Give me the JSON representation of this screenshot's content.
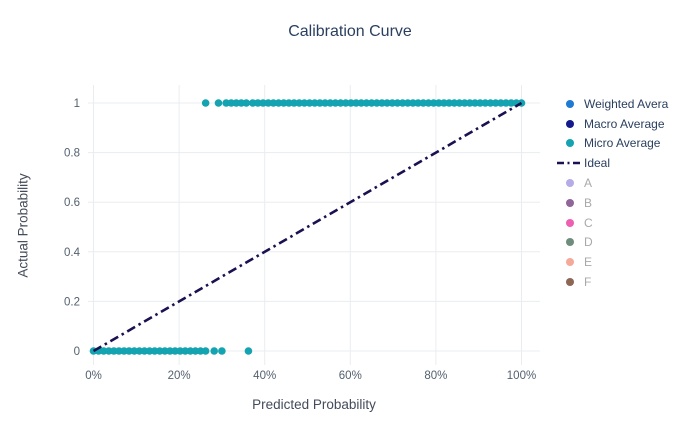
{
  "chart_data": {
    "type": "scatter",
    "title": "Calibration Curve",
    "xlabel": "Predicted Probability",
    "ylabel": "Actual Probability",
    "x_ticks": [
      "0%",
      "20%",
      "40%",
      "60%",
      "80%",
      "100%"
    ],
    "x_tick_values": [
      0,
      20,
      40,
      60,
      80,
      100
    ],
    "y_ticks": [
      "0",
      "0.2",
      "0.4",
      "0.6",
      "0.8",
      "1"
    ],
    "y_tick_values": [
      0,
      0.2,
      0.4,
      0.6,
      0.8,
      1
    ],
    "xlim_pct": [
      -1.3,
      104.3
    ],
    "ylim": [
      -0.07,
      1.07
    ],
    "grid": true,
    "grid_color": "#e9edf0",
    "tick_color": "#53606f",
    "legend_position": "right",
    "series": [
      {
        "name": "Micro Average",
        "type": "scatter-dots",
        "color": "#13a3b1",
        "marker_size": 7.6,
        "dot_step_pct": 1.2,
        "groups": [
          {
            "y": 0,
            "x_segments": [
              [
                0,
                26.2
              ],
              [
                28.2,
                28.2
              ],
              [
                30.0,
                30.0
              ],
              [
                36.2,
                36.2
              ]
            ]
          },
          {
            "y": 1,
            "x_segments": [
              [
                26.2,
                26.2
              ],
              [
                29.2,
                29.2
              ],
              [
                31.0,
                35.7
              ],
              [
                37.2,
                100
              ]
            ]
          }
        ]
      },
      {
        "name": "Ideal",
        "type": "dashdot-line",
        "color": "#1a1150",
        "line_width": 2.6,
        "points": [
          [
            0,
            0
          ],
          [
            100,
            1
          ]
        ]
      }
    ],
    "legend": {
      "items": [
        {
          "label": "Weighted Avera",
          "color": "#1e7ad3",
          "marker": "dot",
          "dimmed": false
        },
        {
          "label": "Macro Average",
          "color": "#141a8c",
          "marker": "dot",
          "dimmed": false
        },
        {
          "label": "Micro Average",
          "color": "#13a3b1",
          "marker": "dot",
          "dimmed": false
        },
        {
          "label": "Ideal",
          "color": "#1a1150",
          "marker": "dashdot-line",
          "dimmed": false
        },
        {
          "label": "A",
          "color": "#b5abe6",
          "marker": "dot",
          "dimmed": true
        },
        {
          "label": "B",
          "color": "#90659a",
          "marker": "dot",
          "dimmed": true
        },
        {
          "label": "C",
          "color": "#ee5fb1",
          "marker": "dot",
          "dimmed": true
        },
        {
          "label": "D",
          "color": "#6f8d7d",
          "marker": "dot",
          "dimmed": true
        },
        {
          "label": "E",
          "color": "#f5a99a",
          "marker": "dot",
          "dimmed": true
        },
        {
          "label": "F",
          "color": "#8d6756",
          "marker": "dot",
          "dimmed": true
        }
      ]
    }
  }
}
